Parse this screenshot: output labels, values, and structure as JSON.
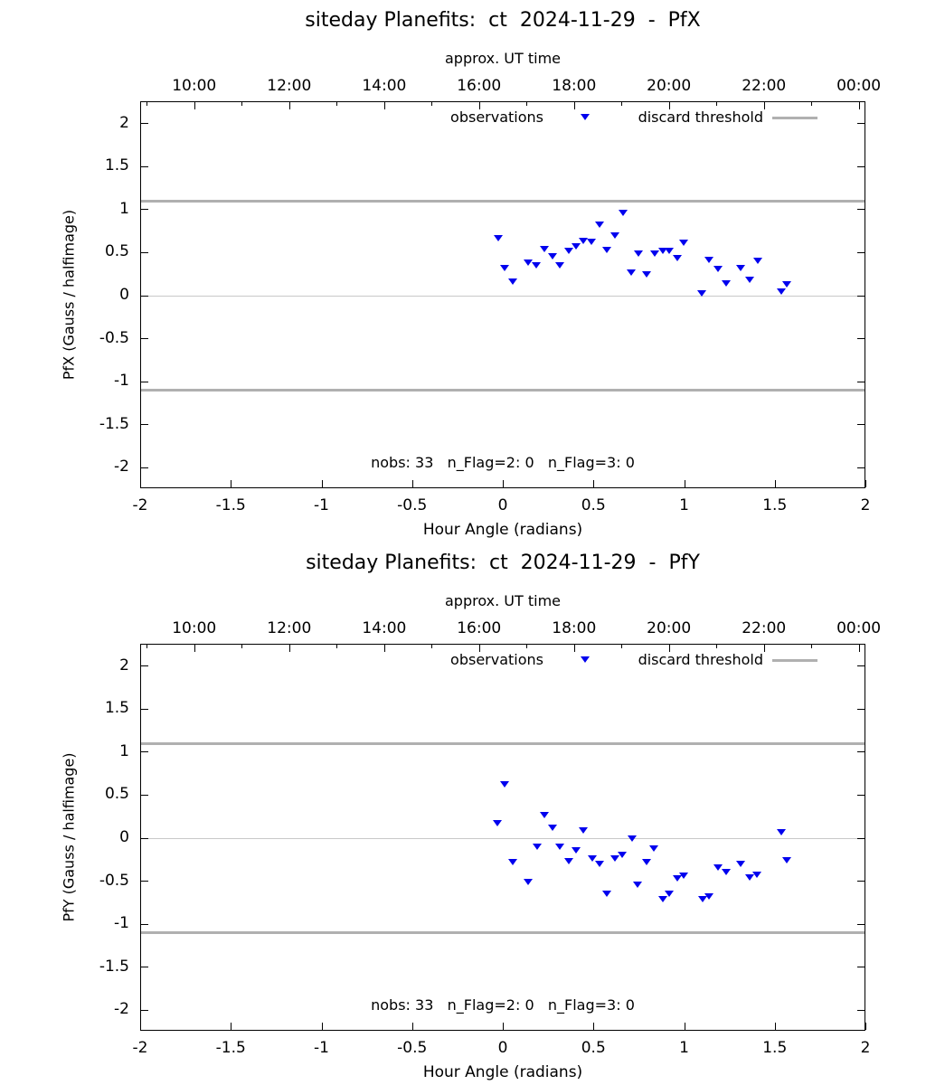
{
  "chart_data": [
    {
      "type": "scatter",
      "title": "siteday Planefits:  ct  2024-11-29  -  PfX",
      "x2label": "approx. UT time",
      "xlabel": "Hour Angle (radians)",
      "ylabel": "PfX (Gauss / halfimage)",
      "annotation": "nobs: 33   n_Flag=2: 0   n_Flag=3: 0",
      "xlim": [
        -2,
        2
      ],
      "ylim": [
        -2.25,
        2.25
      ],
      "x_ticks": [
        -2,
        -1.5,
        -1,
        -0.5,
        0,
        0.5,
        1,
        1.5,
        2
      ],
      "x_tick_labels": [
        "-2",
        "-1.5",
        "-1",
        "-0.5",
        "0",
        "0.5",
        "1",
        "1.5",
        "2"
      ],
      "y_ticks": [
        2,
        1.5,
        1,
        0.5,
        0,
        -0.5,
        -1,
        -1.5,
        -2
      ],
      "y_tick_labels": [
        "2",
        "1.5",
        "1",
        "0.5",
        "0",
        "-0.5",
        "-1",
        "-1.5",
        "-2"
      ],
      "ut_axis": {
        "labels": [
          "10:00",
          "12:00",
          "14:00",
          "16:00",
          "18:00",
          "20:00",
          "22:00",
          "00:00"
        ],
        "ha_positions": [
          -1.702,
          -1.178,
          -0.654,
          -0.131,
          0.393,
          0.916,
          1.44,
          1.963
        ],
        "minor_ha_positions": [
          -1.963,
          -1.44,
          -0.916,
          -0.393,
          0.131,
          0.654,
          1.178,
          1.702
        ]
      },
      "thresholds": [
        1.1,
        -1.1
      ],
      "zero_line": 0,
      "grid": "off",
      "legend_position": "top-inside",
      "colors": {
        "marker": "#0000ee",
        "threshold": "#b0b0b0",
        "zero_line": "#c8c8c8"
      },
      "legend": [
        {
          "label": "observations",
          "marker": "triangle-down-icon"
        },
        {
          "label": "discard threshold",
          "marker": "line-sample"
        }
      ],
      "series": [
        {
          "name": "observations",
          "marker": "triangle-down",
          "points": [
            [
              -0.031,
              0.66
            ],
            [
              0.007,
              0.32
            ],
            [
              0.048,
              0.16
            ],
            [
              0.136,
              0.38
            ],
            [
              0.181,
              0.35
            ],
            [
              0.222,
              0.54
            ],
            [
              0.269,
              0.45
            ],
            [
              0.308,
              0.35
            ],
            [
              0.358,
              0.51
            ],
            [
              0.397,
              0.57
            ],
            [
              0.438,
              0.63
            ],
            [
              0.483,
              0.62
            ],
            [
              0.529,
              0.82
            ],
            [
              0.571,
              0.53
            ],
            [
              0.612,
              0.69
            ],
            [
              0.657,
              0.96
            ],
            [
              0.703,
              0.26
            ],
            [
              0.745,
              0.48
            ],
            [
              0.786,
              0.24
            ],
            [
              0.831,
              0.48
            ],
            [
              0.877,
              0.51
            ],
            [
              0.914,
              0.51
            ],
            [
              0.957,
              0.43
            ],
            [
              0.993,
              0.61
            ],
            [
              1.09,
              0.02
            ],
            [
              1.134,
              0.41
            ],
            [
              1.181,
              0.3
            ],
            [
              1.225,
              0.14
            ],
            [
              1.305,
              0.32
            ],
            [
              1.355,
              0.18
            ],
            [
              1.4,
              0.4
            ],
            [
              1.529,
              0.04
            ],
            [
              1.562,
              0.13
            ]
          ]
        }
      ]
    },
    {
      "type": "scatter",
      "title": "siteday Planefits:  ct  2024-11-29  -  PfY",
      "x2label": "approx. UT time",
      "xlabel": "Hour Angle (radians)",
      "ylabel": "PfY (Gauss / halfimage)",
      "annotation": "nobs: 33   n_Flag=2: 0   n_Flag=3: 0",
      "xlim": [
        -2,
        2
      ],
      "ylim": [
        -2.25,
        2.25
      ],
      "x_ticks": [
        -2,
        -1.5,
        -1,
        -0.5,
        0,
        0.5,
        1,
        1.5,
        2
      ],
      "x_tick_labels": [
        "-2",
        "-1.5",
        "-1",
        "-0.5",
        "0",
        "0.5",
        "1",
        "1.5",
        "2"
      ],
      "y_ticks": [
        2,
        1.5,
        1,
        0.5,
        0,
        -0.5,
        -1,
        -1.5,
        -2
      ],
      "y_tick_labels": [
        "2",
        "1.5",
        "1",
        "0.5",
        "0",
        "-0.5",
        "-1",
        "-1.5",
        "-2"
      ],
      "ut_axis": {
        "labels": [
          "10:00",
          "12:00",
          "14:00",
          "16:00",
          "18:00",
          "20:00",
          "22:00",
          "00:00"
        ],
        "ha_positions": [
          -1.702,
          -1.178,
          -0.654,
          -0.131,
          0.393,
          0.916,
          1.44,
          1.963
        ],
        "minor_ha_positions": [
          -1.963,
          -1.44,
          -0.916,
          -0.393,
          0.131,
          0.654,
          1.178,
          1.702
        ]
      },
      "thresholds": [
        1.1,
        -1.1
      ],
      "zero_line": 0,
      "grid": "off",
      "legend_position": "top-inside",
      "colors": {
        "marker": "#0000ee",
        "threshold": "#b0b0b0",
        "zero_line": "#c8c8c8"
      },
      "legend": [
        {
          "label": "observations",
          "marker": "triangle-down-icon"
        },
        {
          "label": "discard threshold",
          "marker": "line-sample"
        }
      ],
      "series": [
        {
          "name": "observations",
          "marker": "triangle-down",
          "points": [
            [
              -0.035,
              0.17
            ],
            [
              0.006,
              0.62
            ],
            [
              0.048,
              -0.28
            ],
            [
              0.136,
              -0.51
            ],
            [
              0.186,
              -0.11
            ],
            [
              0.225,
              0.26
            ],
            [
              0.269,
              0.12
            ],
            [
              0.31,
              -0.1
            ],
            [
              0.358,
              -0.27
            ],
            [
              0.397,
              -0.15
            ],
            [
              0.441,
              0.08
            ],
            [
              0.488,
              -0.24
            ],
            [
              0.529,
              -0.31
            ],
            [
              0.571,
              -0.65
            ],
            [
              0.612,
              -0.24
            ],
            [
              0.653,
              -0.2
            ],
            [
              0.707,
              -0.01
            ],
            [
              0.736,
              -0.55
            ],
            [
              0.786,
              -0.28
            ],
            [
              0.827,
              -0.13
            ],
            [
              0.877,
              -0.72
            ],
            [
              0.914,
              -0.65
            ],
            [
              0.957,
              -0.47
            ],
            [
              0.993,
              -0.44
            ],
            [
              1.096,
              -0.72
            ],
            [
              1.134,
              -0.68
            ],
            [
              1.184,
              -0.35
            ],
            [
              1.229,
              -0.4
            ],
            [
              1.308,
              -0.3
            ],
            [
              1.355,
              -0.46
            ],
            [
              1.397,
              -0.43
            ],
            [
              1.532,
              0.06
            ],
            [
              1.561,
              -0.26
            ]
          ]
        }
      ]
    }
  ]
}
